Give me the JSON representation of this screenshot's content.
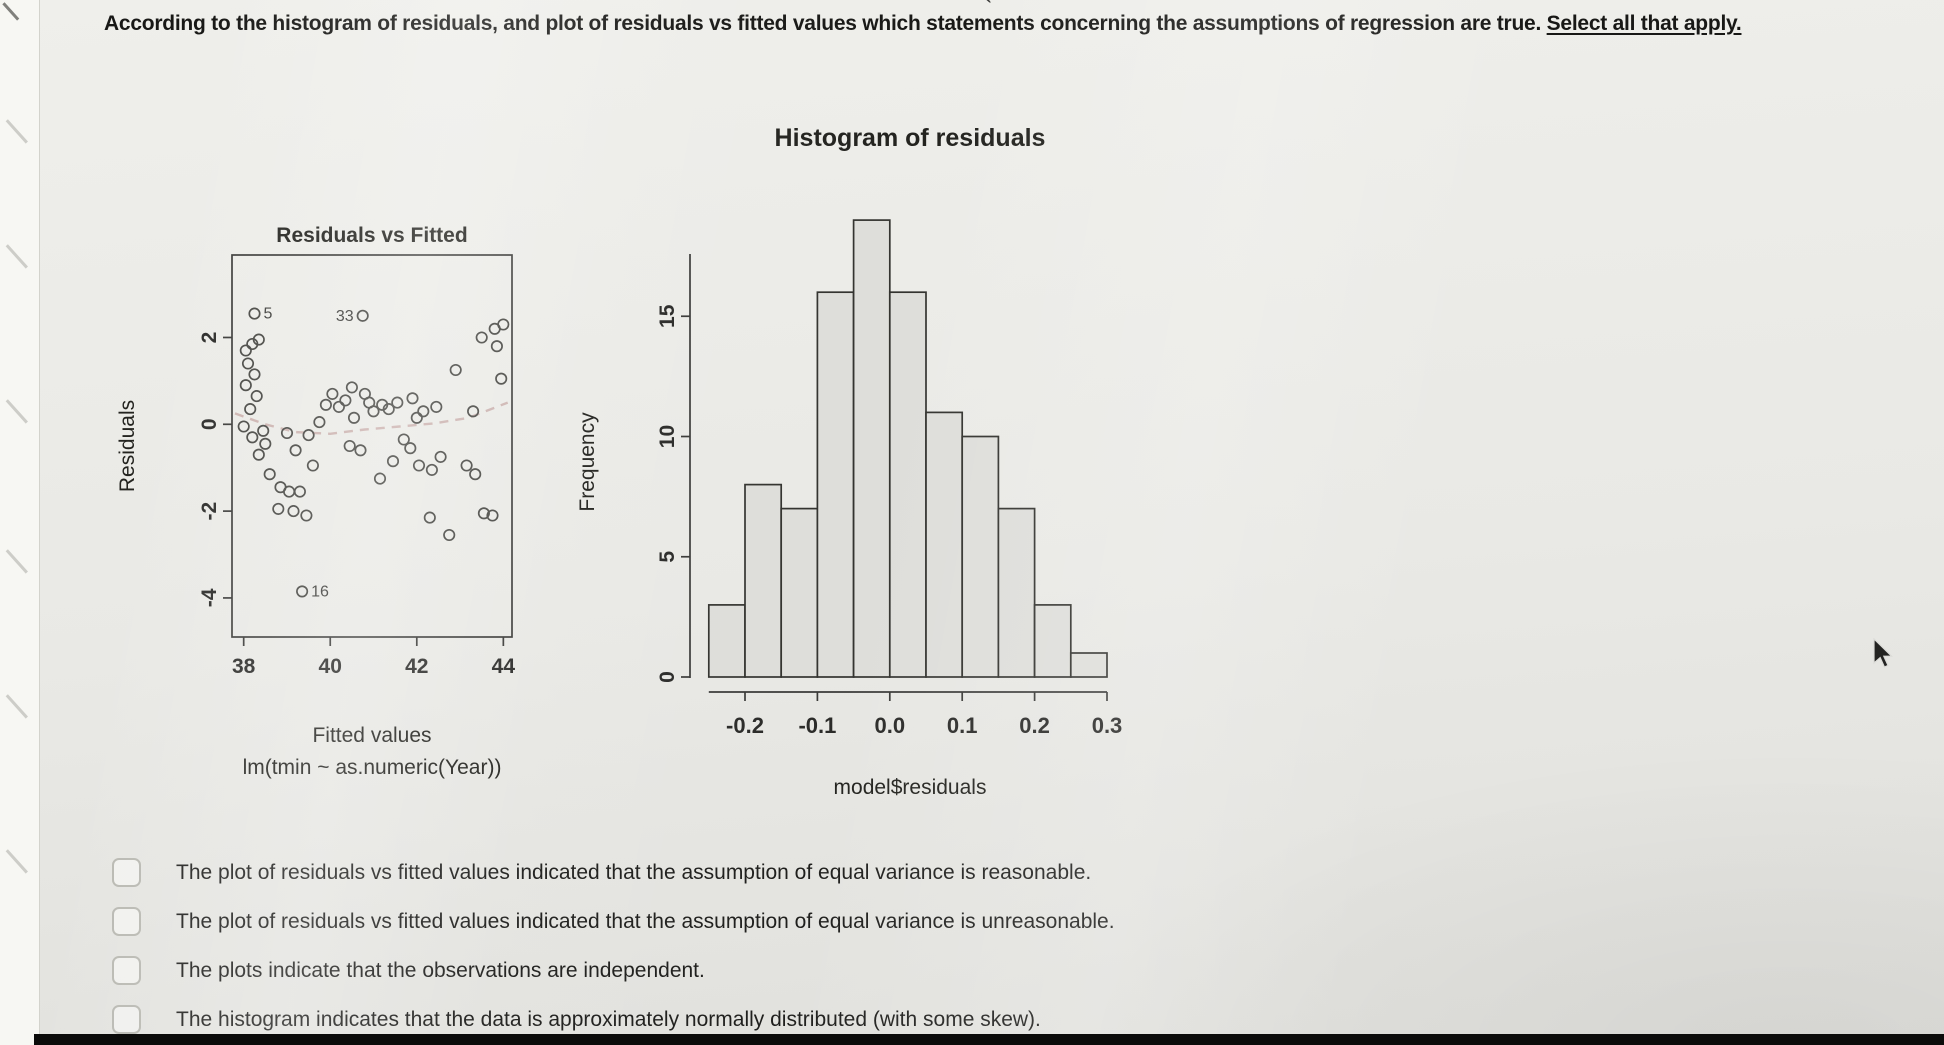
{
  "page": {
    "question_text": "According to the histogram of residuals, and plot of residuals vs fitted values which statements concerning the assumptions of regression are true. ",
    "question_link": "Select all that apply.",
    "artifact_mark": "`"
  },
  "options": [
    {
      "label": "The plot of residuals vs fitted values indicated that the assumption of equal variance is reasonable.",
      "checked": false
    },
    {
      "label": "The plot of residuals vs fitted values indicated that the assumption of equal variance is unreasonable.",
      "checked": false
    },
    {
      "label": "The plots indicate that the observations are independent.",
      "checked": false
    },
    {
      "label": "The histogram indicates that the data is approximately normally distributed (with some skew).",
      "checked": false
    }
  ],
  "chart_data": [
    {
      "type": "scatter",
      "title": "Residuals vs Fitted",
      "xlabel": "Fitted values",
      "xlabel2": "lm(tmin ~ as.numeric(Year))",
      "ylabel": "Residuals",
      "xlim": [
        37.73,
        44.2
      ],
      "ylim": [
        -4.9,
        3.9
      ],
      "x_ticks": [
        38,
        40,
        42,
        44
      ],
      "y_ticks": [
        2,
        0,
        -2,
        -4
      ],
      "grid": false,
      "points": [
        [
          38.05,
          1.7
        ],
        [
          38.2,
          1.85
        ],
        [
          38.35,
          1.95
        ],
        [
          38.1,
          1.4
        ],
        [
          38.25,
          1.15
        ],
        [
          38.05,
          0.9
        ],
        [
          38.3,
          0.65
        ],
        [
          38.15,
          0.35
        ],
        [
          38.0,
          -0.05
        ],
        [
          38.2,
          -0.3
        ],
        [
          38.45,
          -0.15
        ],
        [
          38.35,
          -0.7
        ],
        [
          38.6,
          -1.15
        ],
        [
          38.5,
          -0.45
        ],
        [
          38.85,
          -1.45
        ],
        [
          39.05,
          -1.55
        ],
        [
          38.8,
          -1.95
        ],
        [
          39.15,
          -2.0
        ],
        [
          39.45,
          -2.1
        ],
        [
          39.3,
          -1.55
        ],
        [
          39.6,
          -0.95
        ],
        [
          39.5,
          -0.25
        ],
        [
          39.75,
          0.05
        ],
        [
          39.9,
          0.45
        ],
        [
          40.05,
          0.7
        ],
        [
          40.2,
          0.4
        ],
        [
          40.35,
          0.55
        ],
        [
          40.5,
          0.85
        ],
        [
          40.55,
          0.15
        ],
        [
          40.8,
          0.7
        ],
        [
          40.7,
          -0.6
        ],
        [
          41.0,
          0.3
        ],
        [
          41.2,
          0.45
        ],
        [
          41.35,
          0.35
        ],
        [
          41.55,
          0.5
        ],
        [
          41.45,
          -0.85
        ],
        [
          41.15,
          -1.25
        ],
        [
          41.7,
          -0.35
        ],
        [
          41.85,
          -0.55
        ],
        [
          42.0,
          0.15
        ],
        [
          42.15,
          0.3
        ],
        [
          42.05,
          -0.95
        ],
        [
          42.35,
          -1.05
        ],
        [
          42.55,
          -0.75
        ],
        [
          42.3,
          -2.15
        ],
        [
          42.75,
          -2.55
        ],
        [
          42.9,
          1.25
        ],
        [
          43.15,
          -0.95
        ],
        [
          43.35,
          -1.15
        ],
        [
          43.55,
          -2.05
        ],
        [
          43.75,
          -2.1
        ],
        [
          43.5,
          2.0
        ],
        [
          43.8,
          2.2
        ],
        [
          43.85,
          1.8
        ],
        [
          43.95,
          1.05
        ],
        [
          43.3,
          0.3
        ],
        [
          44.0,
          2.3
        ],
        [
          42.45,
          0.4
        ],
        [
          41.9,
          0.6
        ],
        [
          40.9,
          0.5
        ],
        [
          40.45,
          -0.5
        ],
        [
          39.2,
          -0.6
        ],
        [
          39.0,
          -0.2
        ]
      ],
      "labeled_points": [
        {
          "label": "5",
          "x": 38.25,
          "y": 2.55,
          "side": "right"
        },
        {
          "label": "33",
          "x": 40.75,
          "y": 2.5,
          "side": "left"
        },
        {
          "label": "16",
          "x": 39.35,
          "y": -3.85,
          "side": "right"
        }
      ],
      "smooth_line": {
        "color": "#c7a9a6",
        "dashed": true,
        "points": [
          [
            37.8,
            0.25
          ],
          [
            38.5,
            0.0
          ],
          [
            39.2,
            -0.18
          ],
          [
            40.0,
            -0.22
          ],
          [
            40.8,
            -0.12
          ],
          [
            41.6,
            -0.05
          ],
          [
            42.4,
            0.02
          ],
          [
            43.2,
            0.15
          ],
          [
            44.1,
            0.5
          ]
        ]
      }
    },
    {
      "type": "histogram",
      "title": "Histogram of residuals",
      "xlabel": "model$residuals",
      "ylabel": "Frequency",
      "bin_start": -0.25,
      "bin_width": 0.05,
      "counts": [
        3,
        8,
        7,
        16,
        19,
        16,
        11,
        10,
        7,
        3,
        1
      ],
      "x_ticks": [
        -0.2,
        -0.1,
        0.0,
        0.1,
        0.2,
        0.3
      ],
      "y_ticks": [
        0,
        5,
        10,
        15
      ],
      "ylim": [
        0,
        19.5
      ],
      "bar_fill": "#dededa",
      "bar_stroke": "#33332f"
    }
  ]
}
